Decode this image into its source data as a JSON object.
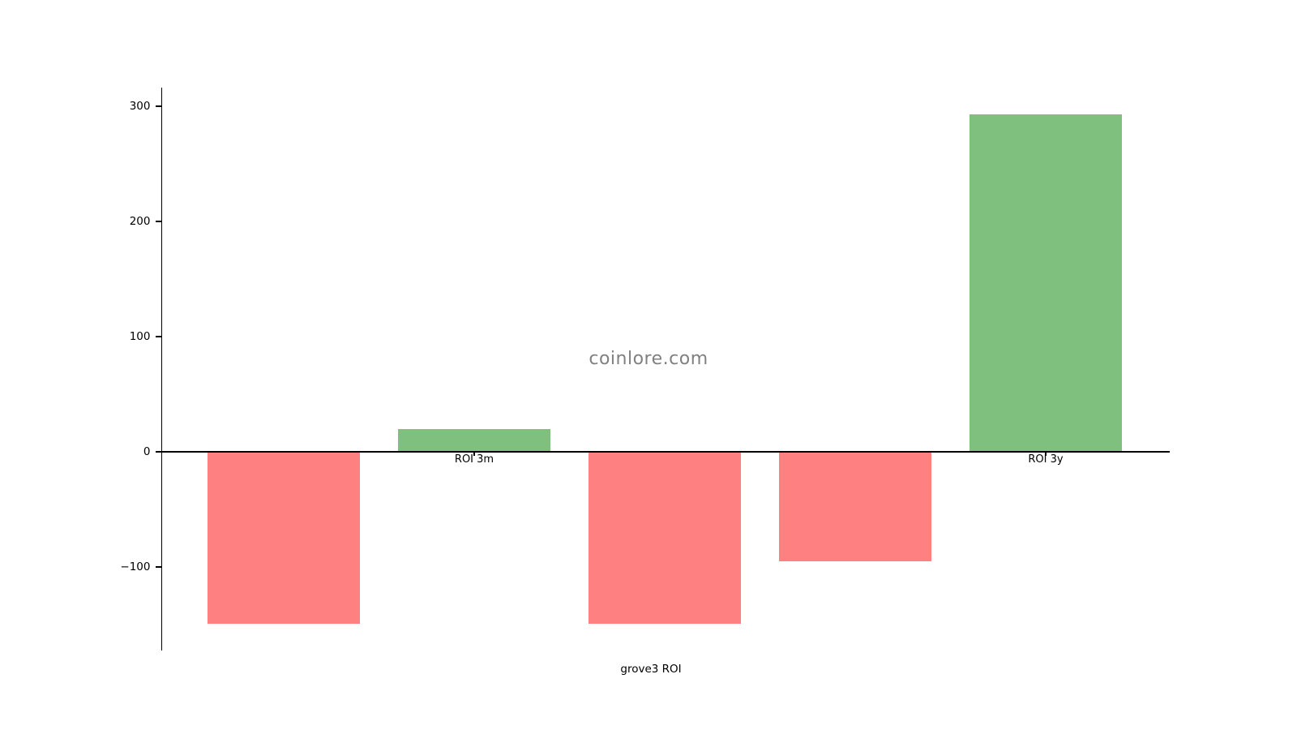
{
  "page": {
    "background": "#ffffff",
    "axis_color": "#000000",
    "text_color": "#000000"
  },
  "watermark": {
    "text": "coinlore.com",
    "color": "#808080"
  },
  "chart_data": {
    "type": "bar",
    "title": "grove3 ROI",
    "xlabel": "",
    "ylabel": "",
    "categories": [
      "",
      "ROI 3m",
      "",
      "",
      "ROI 3y"
    ],
    "values": [
      -149,
      20,
      -149,
      -95,
      293
    ],
    "bar_colors": {
      "positive": "#7fc07f",
      "negative": "#ff8080"
    },
    "y_ticks": [
      300,
      200,
      100,
      0,
      -100
    ],
    "ylim": [
      -172,
      316
    ],
    "grid": false,
    "legend": false,
    "notes": "single series; negative bars red, positive bars green; x tick labels visible only under positive bars"
  }
}
